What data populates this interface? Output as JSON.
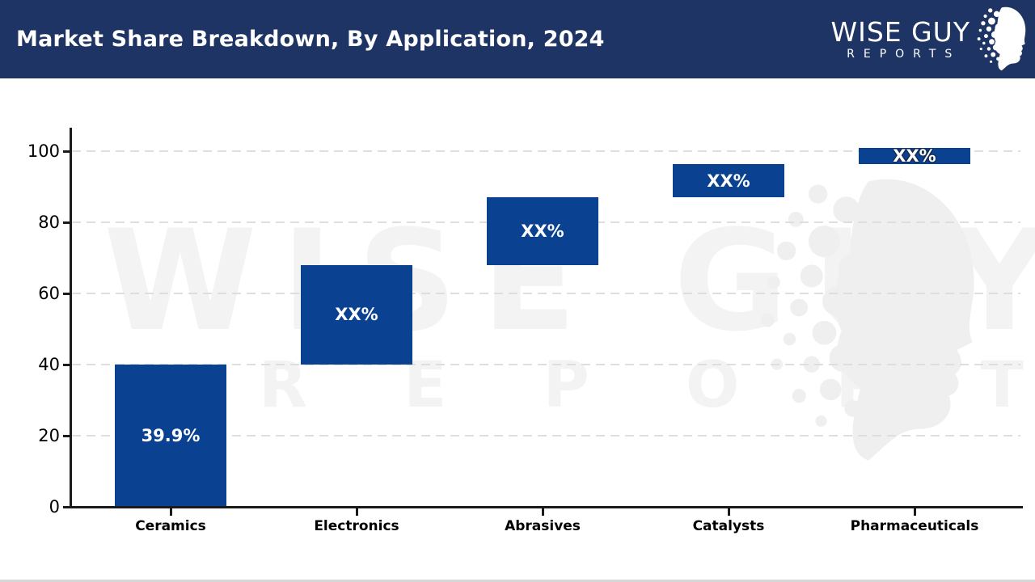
{
  "header": {
    "title": "Market Share Breakdown, By Application, 2024",
    "bg_color": "#1e3464",
    "logo": {
      "line1": "WISE GUY",
      "line2": "REPORTS"
    }
  },
  "watermark": {
    "line1": "WISE GUY",
    "line2": "R E P O R T S"
  },
  "footer": {
    "divider_color": "#d8d8d8"
  },
  "chart_data": {
    "type": "bar",
    "subtype": "waterfall",
    "title": "Market Share Breakdown, By Application, 2024",
    "categories": [
      "Ceramics",
      "Electronics",
      "Abrasives",
      "Catalysts",
      "Pharmaceuticals"
    ],
    "segments": [
      {
        "category": "Ceramics",
        "from": 0,
        "to": 39.9,
        "value": 39.9,
        "label": "39.9%"
      },
      {
        "category": "Electronics",
        "from": 40,
        "to": 68,
        "value": 28,
        "label": "XX%"
      },
      {
        "category": "Abrasives",
        "from": 68,
        "to": 87,
        "value": 19,
        "label": "XX%"
      },
      {
        "category": "Catalysts",
        "from": 87,
        "to": 96.3,
        "value": 9.3,
        "label": "XX%"
      },
      {
        "category": "Pharmaceuticals",
        "from": 96.3,
        "to": 100.8,
        "value": 4.5,
        "label": "XX%"
      }
    ],
    "yticks": [
      0,
      20,
      40,
      60,
      80,
      100
    ],
    "ylim": [
      0,
      106.5
    ],
    "xlabel": "",
    "ylabel": "",
    "bar_color": "#0a4191",
    "grid": "horizontal-dashed",
    "legend": "none"
  }
}
